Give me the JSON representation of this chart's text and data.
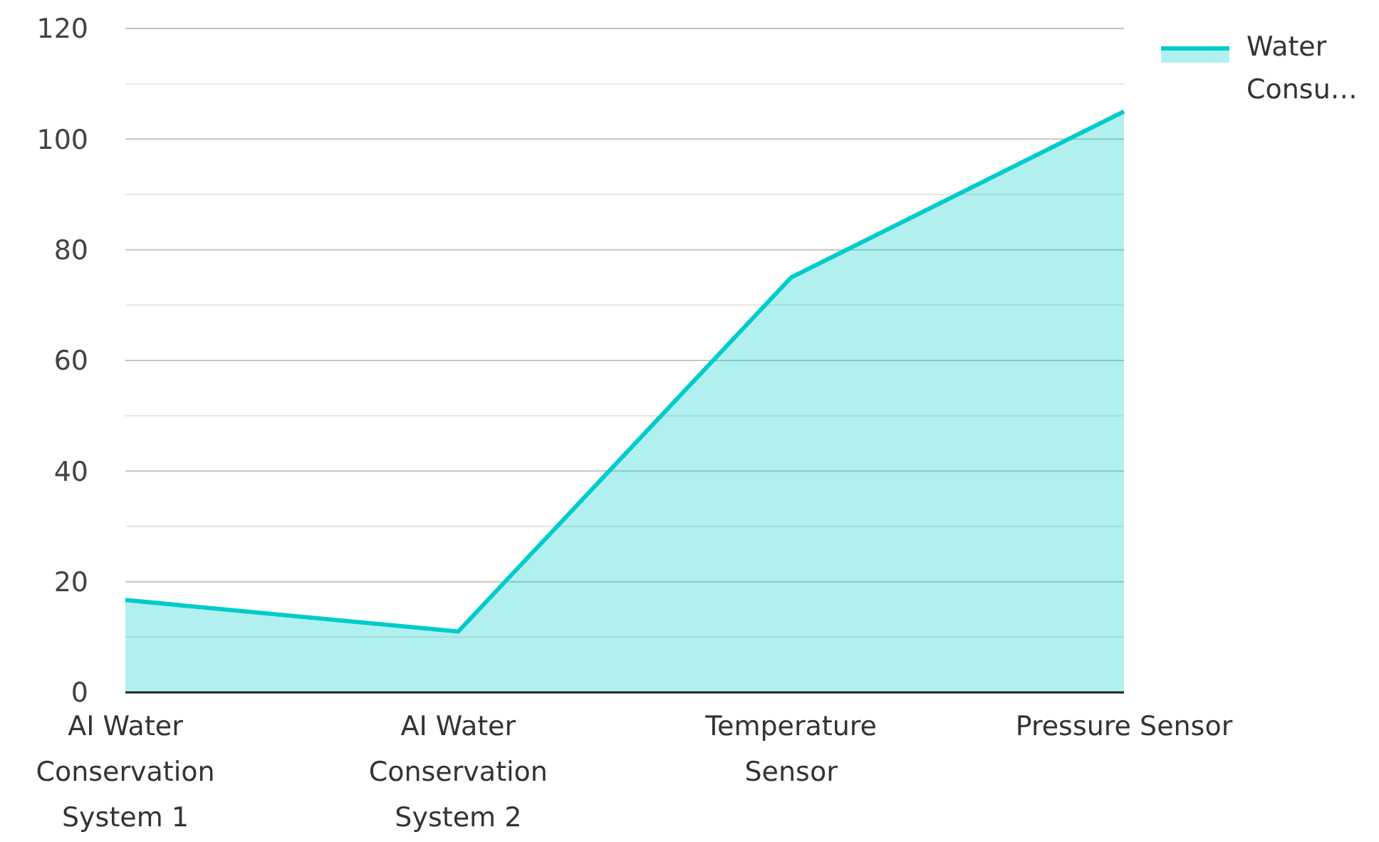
{
  "chart_data": {
    "type": "area",
    "categories": [
      "AI Water Conservation System 1",
      "AI Water Conservation System 2",
      "Temperature Sensor",
      "Pressure Sensor"
    ],
    "series": [
      {
        "name": "Water Consu…",
        "color": "#00cccc",
        "values": [
          16.7,
          11,
          75,
          105
        ]
      }
    ],
    "ylim": [
      0,
      120
    ],
    "yticks": [
      0,
      {
        "value": 10,
        "label": null
      },
      20,
      {
        "value": 30,
        "label": null
      },
      40,
      {
        "value": 50,
        "label": null
      },
      60,
      {
        "value": 70,
        "label": null
      },
      80,
      {
        "value": 90,
        "label": null
      },
      100,
      {
        "value": 110,
        "label": null
      },
      120
    ],
    "grid": "y",
    "legend": "top right"
  }
}
